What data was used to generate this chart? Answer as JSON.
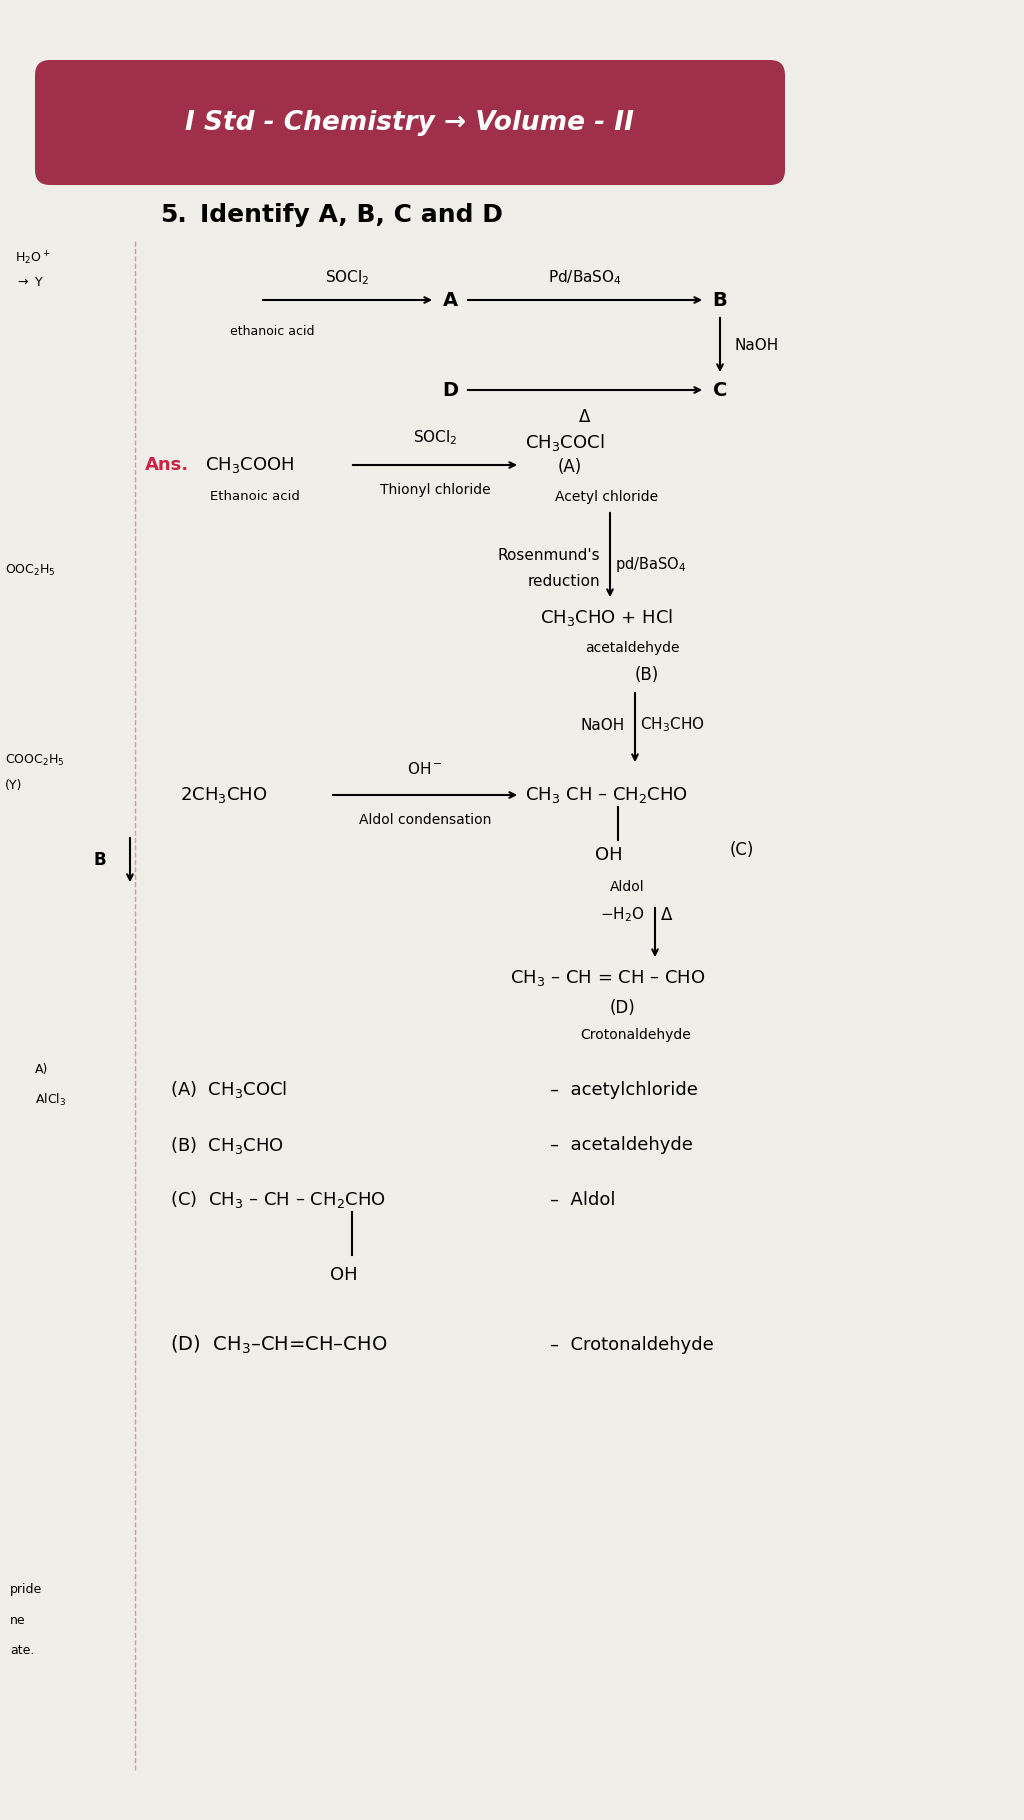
{
  "bg_color": "#e8e4e0",
  "page_bg": "#f0eee8",
  "header_bg": "#a0304a",
  "header_text": "I Std - Chemistry → Volume - II",
  "question_num": "5.",
  "question_text": "Identify A, B, C and D",
  "ans_label": "Ans.",
  "ans_color": "#cc2244",
  "title_fontsize": 18,
  "body_fontsize": 13,
  "small_fontsize": 11
}
